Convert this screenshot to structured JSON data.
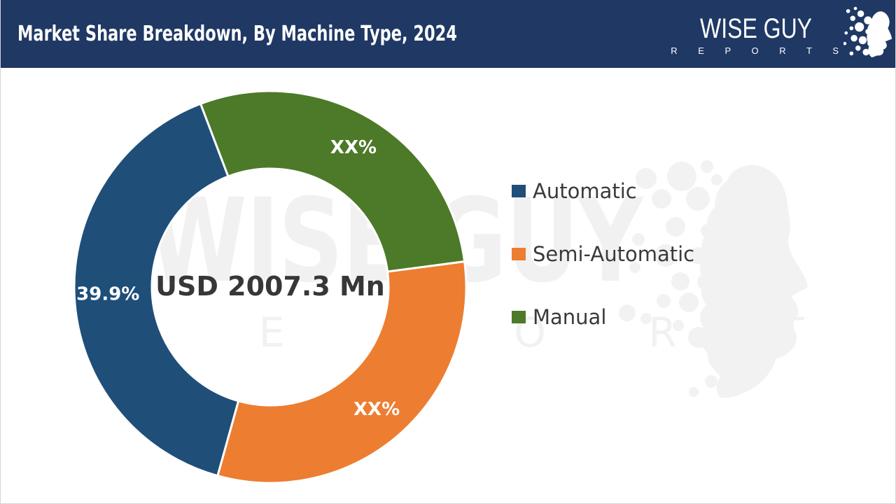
{
  "header": {
    "title": "Market Share Breakdown, By Machine Type, 2024",
    "bg_color": "#1F3864",
    "logo": {
      "line1": "WISE GUY",
      "line2": "R E P O R T S"
    }
  },
  "watermark": {
    "line1": "WISE GUY",
    "line2": "R E P O R T S"
  },
  "chart_data": {
    "type": "pie",
    "subtype": "donut",
    "title": "Market Share Breakdown, By Machine Type, 2024",
    "center_label": "USD 2007.3 Mn",
    "start_angle_deg": 110.8,
    "direction": "counterclockwise",
    "legend_position": "right",
    "series": [
      {
        "name": "Automatic",
        "value_pct": 39.9,
        "label": "39.9%",
        "color": "#1F4E79"
      },
      {
        "name": "Semi-Automatic",
        "value_pct": 31.4,
        "label": "XX%",
        "color": "#ED7D31"
      },
      {
        "name": "Manual",
        "value_pct": 28.7,
        "label": "XX%",
        "color": "#4C7A28"
      }
    ]
  },
  "colors": {
    "header_bg": "#1F3864",
    "text_dark": "#3A3A3A",
    "watermark": "#F1F1F1",
    "slice_gap": "#FFFFFF"
  }
}
